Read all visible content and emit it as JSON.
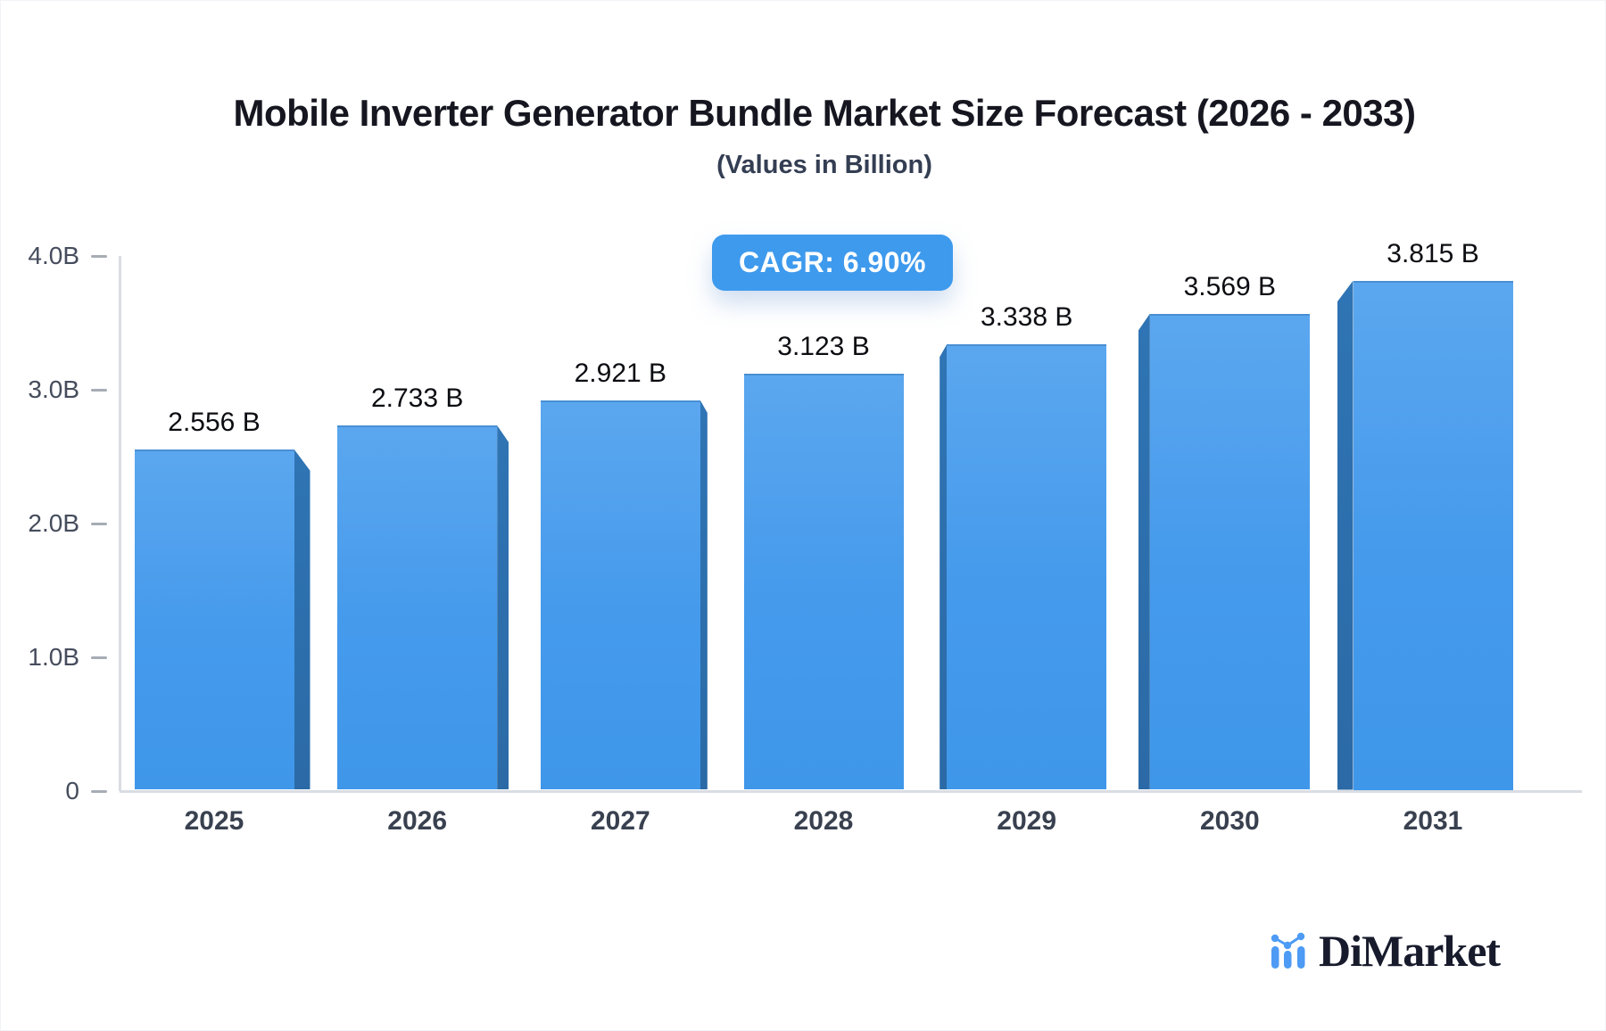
{
  "header": {
    "title": "Mobile Inverter Generator Bundle Market Size Forecast (2026 - 2033)",
    "subtitle": "(Values in Billion)"
  },
  "badge": {
    "label": "CAGR: 6.90%"
  },
  "chart_data": {
    "type": "bar",
    "title": "Mobile Inverter Generator Bundle Market Size Forecast (2026 - 2033)",
    "subtitle": "(Values in Billion)",
    "unit": "Billion",
    "cagr": "6.90%",
    "categories": [
      "2025",
      "2026",
      "2027",
      "2028",
      "2029",
      "2030",
      "2031"
    ],
    "values": [
      2.556,
      2.733,
      2.921,
      3.123,
      3.338,
      3.569,
      3.815
    ],
    "value_labels": [
      "2.556 B",
      "2.733 B",
      "2.921 B",
      "3.123 B",
      "3.338 B",
      "3.569 B",
      "3.815 B"
    ],
    "xlabel": "",
    "ylabel": "",
    "ylim": [
      0,
      4
    ],
    "yticks": {
      "values": [
        0,
        1,
        2,
        3,
        4
      ],
      "labels": [
        "0",
        "1.0B",
        "2.0B",
        "3.0B",
        "4.0B"
      ]
    },
    "grid": false,
    "legend_position": "none",
    "colors": {
      "bar_face_top": "#5ba7ef",
      "bar_face_bottom": "#3f97ea",
      "bar_side": "#2d70ae",
      "badge_background": "#3e9aed",
      "badge_text": "#ffffff",
      "axis_line": "#d9dce2",
      "tick": "#a7acb5",
      "title_text": "#15161f",
      "subtitle_text": "#343e53",
      "value_label_text": "#0c0d12",
      "axis_label_text": "#454c5c"
    }
  },
  "footer": {
    "brand": "DiMarket"
  }
}
